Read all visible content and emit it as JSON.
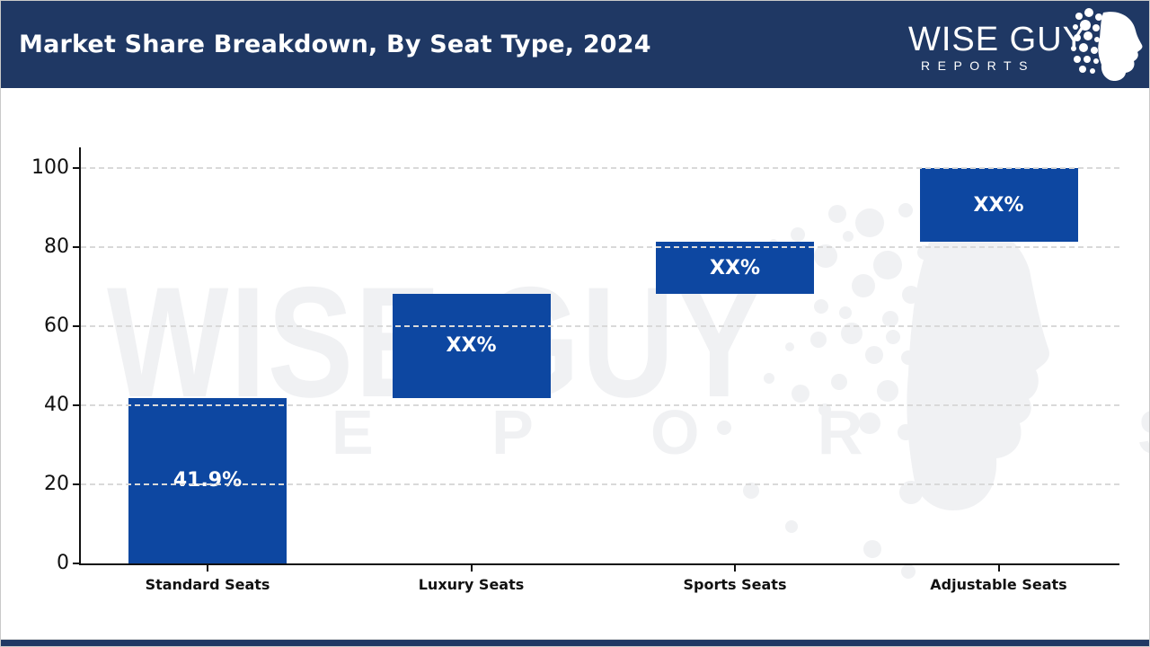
{
  "header": {
    "title": "Market Share Breakdown, By Seat Type, 2024",
    "brand": {
      "name_line": "WISE GUY",
      "sub_line": "R E P O R T S"
    }
  },
  "watermark": {
    "big_text": "WISE GUY",
    "sub_text": "R E P O R T S"
  },
  "colors": {
    "header_bg": "#1f3864",
    "footer_bg": "#1f3864",
    "bar": "#0d47a1",
    "grid": "#d9d9d9",
    "axis": "#111111",
    "bar_label_text": "#ffffff",
    "watermark": "#f0f1f3"
  },
  "chart_data": {
    "type": "bar",
    "subtype": "waterfall",
    "title": "Market Share Breakdown, By Seat Type, 2024",
    "categories": [
      "Standard Seats",
      "Luxury Seats",
      "Sports Seats",
      "Adjustable Seats"
    ],
    "series": [
      {
        "name": "Market Share",
        "segments": [
          {
            "category": "Standard Seats",
            "start": 0,
            "end": 41.9,
            "label": "41.9%"
          },
          {
            "category": "Luxury Seats",
            "start": 41.9,
            "end": 68.2,
            "label": "XX%"
          },
          {
            "category": "Sports Seats",
            "start": 68.2,
            "end": 81.3,
            "label": "XX%"
          },
          {
            "category": "Adjustable Seats",
            "start": 81.3,
            "end": 100,
            "label": "XX%"
          }
        ]
      }
    ],
    "bar_labels": [
      "41.9%",
      "XX%",
      "XX%",
      "XX%"
    ],
    "xlabel": "",
    "ylabel": "",
    "ylim": [
      0,
      100
    ],
    "yticks": [
      0,
      20,
      40,
      60,
      80,
      100
    ],
    "grid": "horizontal-dashed",
    "legend_position": "none"
  }
}
